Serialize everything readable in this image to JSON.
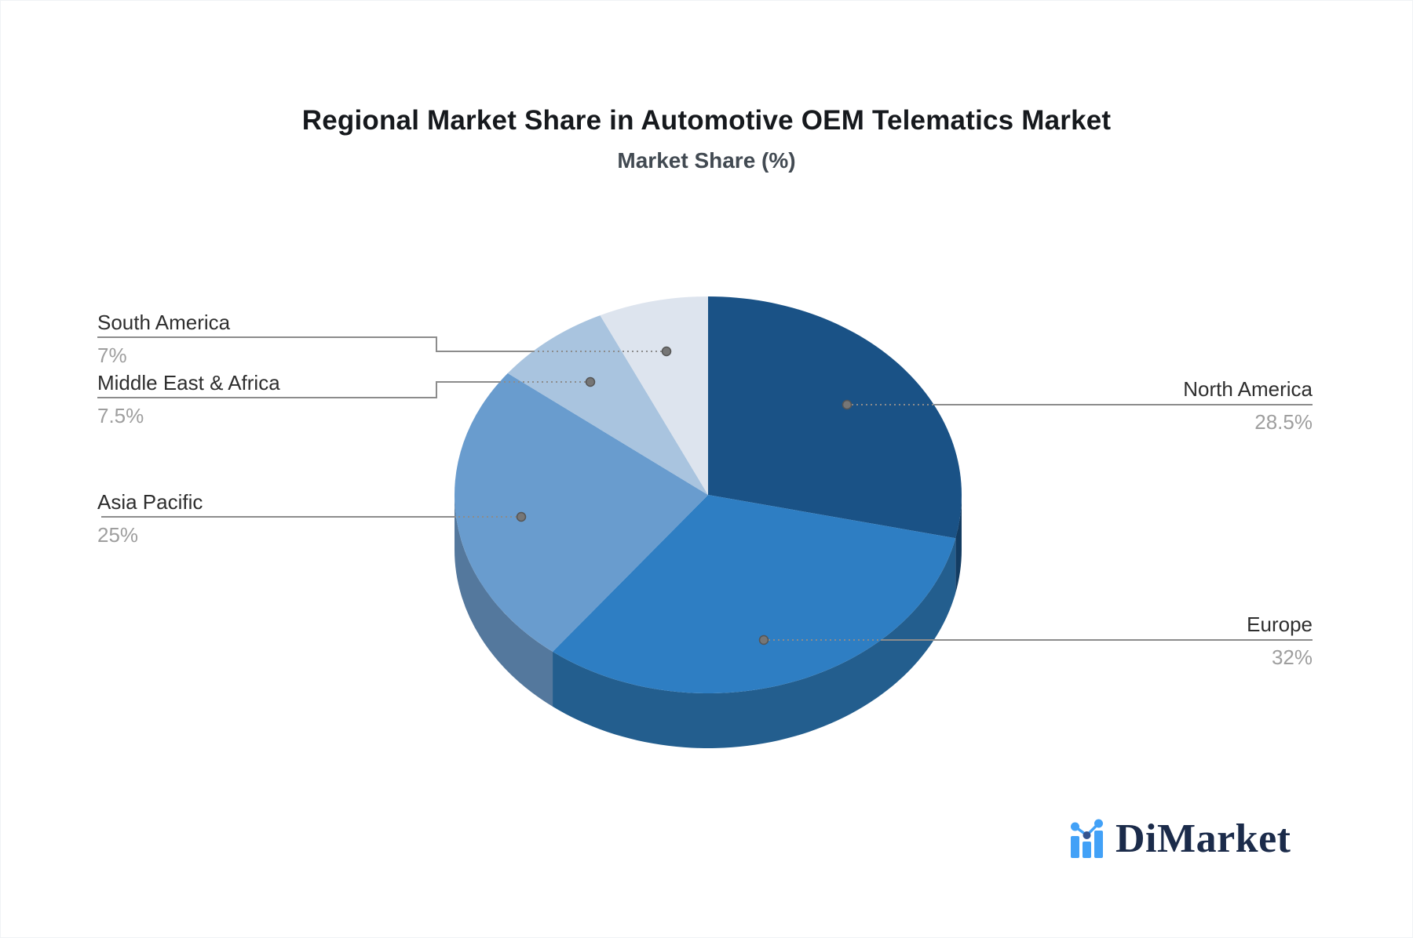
{
  "header": {
    "title": "Regional Market Share in Automotive OEM Telematics Market",
    "subtitle": "Market Share (%)"
  },
  "chart_data": {
    "type": "pie",
    "title": "Regional Market Share in Automotive OEM Telematics Market",
    "subtitle": "Market Share (%)",
    "unit": "percent",
    "style": "3d",
    "direction": "clockwise",
    "start": "top",
    "legend_position": "callout-labels",
    "segments": [
      {
        "label": "North America",
        "value": 28.5,
        "display": "28.5%",
        "color": "#1A5286",
        "side_color": "#133C62"
      },
      {
        "label": "Europe",
        "value": 32,
        "display": "32%",
        "color": "#2E7EC3",
        "side_color": "#235E8E"
      },
      {
        "label": "Asia Pacific",
        "value": 25,
        "display": "25%",
        "color": "#699CCE",
        "side_color": "#54789D"
      },
      {
        "label": "Middle East & Africa",
        "value": 7.5,
        "display": "7.5%",
        "color": "#A9C4DF",
        "side_color": "#8BA3BD"
      },
      {
        "label": "South America",
        "value": 7,
        "display": "7%",
        "color": "#DDE4EE",
        "side_color": "#B9C2CF"
      }
    ],
    "leader_line_color": "#8c8c8c",
    "label_color": "#2e2e2e",
    "value_color": "#9e9e9e"
  },
  "logo": {
    "text": "DiMarket",
    "icon": "bar-chart-trend-icon",
    "text_color": "#1B2B4A",
    "icon_color": "#42A1F7",
    "icon_dot_color": "#35548F"
  }
}
